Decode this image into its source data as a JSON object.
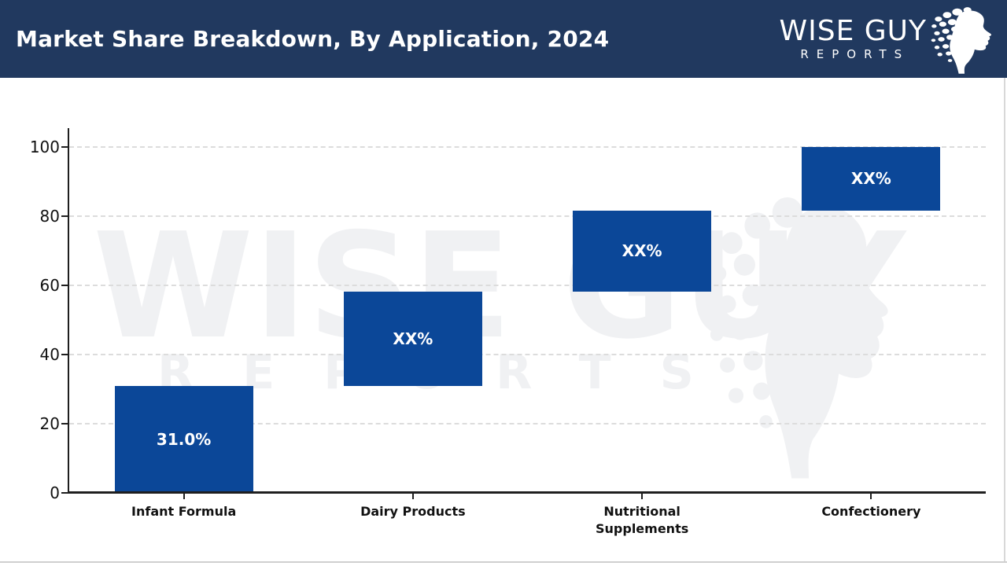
{
  "header": {
    "title": "Market Share Breakdown, By Application, 2024",
    "logo": {
      "line1": "WISE GUY",
      "line2": "REPORTS"
    }
  },
  "watermark": {
    "line1": "WISE GUY",
    "line2": "REPORTS"
  },
  "colors": {
    "header_bg": "#21395f",
    "bar": "#0b4798",
    "bar_label": "#ffffff",
    "grid": "#dcdcdc",
    "axis": "#1f1f1f",
    "watermark": "#f0f1f3"
  },
  "chart_data": {
    "type": "bar",
    "subtype": "waterfall",
    "title": "Market Share Breakdown, By Application, 2024",
    "categories": [
      "Infant Formula",
      "Dairy Products",
      "Nutritional Supplements",
      "Confectionery"
    ],
    "segments": [
      {
        "category": "Infant Formula",
        "start": 0,
        "end": 31,
        "label": "31.0%"
      },
      {
        "category": "Dairy Products",
        "start": 31,
        "end": 58.2,
        "label": "XX%"
      },
      {
        "category": "Nutritional Supplements",
        "start": 58.2,
        "end": 81.6,
        "label": "XX%"
      },
      {
        "category": "Confectionery",
        "start": 81.6,
        "end": 100,
        "label": "XX%"
      }
    ],
    "xlabel": "",
    "ylabel": "",
    "ylim": [
      0,
      100
    ],
    "yticks": [
      0,
      20,
      40,
      60,
      80,
      100
    ],
    "grid": "horizontal-dashed",
    "legend": "none"
  }
}
